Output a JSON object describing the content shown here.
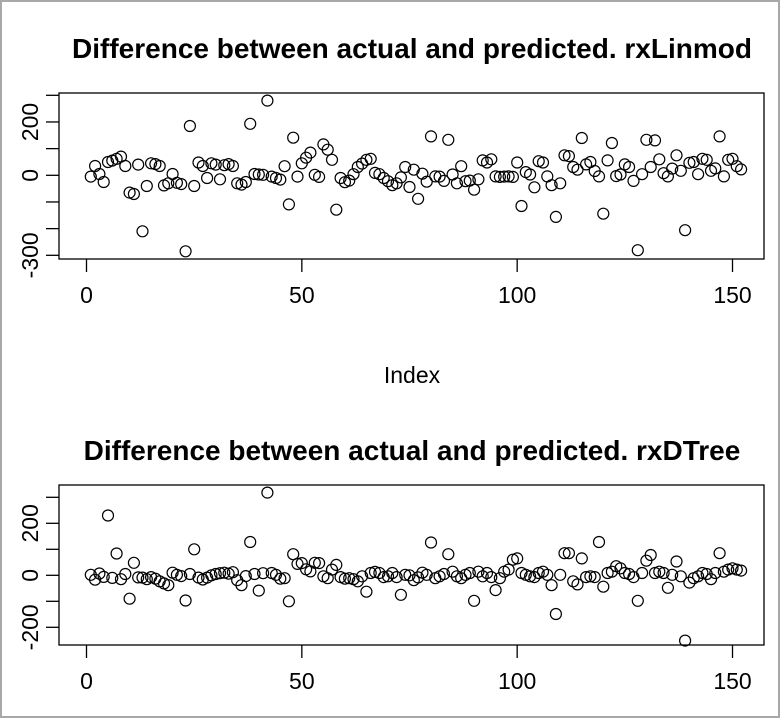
{
  "figure": {
    "background": "#ffffff",
    "border_color": "#a8a8a8"
  },
  "chart_data": [
    {
      "type": "scatter",
      "title": "Difference between actual and predicted. rxLinmod",
      "xlabel": "Index",
      "ylabel": "",
      "marker": "open-circle",
      "point_color": "#000000",
      "grid": false,
      "xlim": [
        -6,
        158
      ],
      "ylim": [
        -313,
        308
      ],
      "x_ticks": [
        {
          "v": 0,
          "label": "0"
        },
        {
          "v": 50,
          "label": "50"
        },
        {
          "v": 100,
          "label": "100"
        },
        {
          "v": 150,
          "label": "150"
        }
      ],
      "y_ticks": [
        {
          "v": 300,
          "label": ""
        },
        {
          "v": 200,
          "label": "200"
        },
        {
          "v": 100,
          "label": ""
        },
        {
          "v": 0,
          "label": "0"
        },
        {
          "v": -100,
          "label": ""
        },
        {
          "v": -200,
          "label": ""
        },
        {
          "v": -300,
          "label": "-300"
        }
      ],
      "points": [
        [
          1,
          -5
        ],
        [
          2,
          35
        ],
        [
          3,
          5
        ],
        [
          4,
          -25
        ],
        [
          5,
          50
        ],
        [
          6,
          55
        ],
        [
          7,
          62
        ],
        [
          8,
          70
        ],
        [
          9,
          35
        ],
        [
          10,
          -65
        ],
        [
          11,
          -70
        ],
        [
          12,
          40
        ],
        [
          13,
          -210
        ],
        [
          14,
          -40
        ],
        [
          15,
          45
        ],
        [
          16,
          42
        ],
        [
          17,
          35
        ],
        [
          18,
          -38
        ],
        [
          19,
          -30
        ],
        [
          20,
          5
        ],
        [
          21,
          -28
        ],
        [
          22,
          -33
        ],
        [
          23,
          -285
        ],
        [
          24,
          185
        ],
        [
          25,
          -40
        ],
        [
          26,
          48
        ],
        [
          27,
          35
        ],
        [
          28,
          -10
        ],
        [
          29,
          45
        ],
        [
          30,
          40
        ],
        [
          31,
          -15
        ],
        [
          32,
          38
        ],
        [
          33,
          42
        ],
        [
          34,
          35
        ],
        [
          35,
          -30
        ],
        [
          36,
          -35
        ],
        [
          37,
          -25
        ],
        [
          38,
          193
        ],
        [
          39,
          5
        ],
        [
          40,
          3
        ],
        [
          41,
          2
        ],
        [
          42,
          280
        ],
        [
          43,
          -5
        ],
        [
          44,
          -10
        ],
        [
          45,
          -16
        ],
        [
          46,
          34
        ],
        [
          47,
          -109
        ],
        [
          48,
          141
        ],
        [
          49,
          -5
        ],
        [
          50,
          45
        ],
        [
          51,
          66
        ],
        [
          52,
          85
        ],
        [
          53,
          2
        ],
        [
          54,
          -6
        ],
        [
          55,
          116
        ],
        [
          56,
          96
        ],
        [
          57,
          58
        ],
        [
          58,
          -129
        ],
        [
          59,
          -10
        ],
        [
          60,
          -26
        ],
        [
          61,
          -20
        ],
        [
          62,
          4
        ],
        [
          63,
          31
        ],
        [
          64,
          44
        ],
        [
          65,
          58
        ],
        [
          66,
          62
        ],
        [
          67,
          9
        ],
        [
          68,
          4
        ],
        [
          69,
          -10
        ],
        [
          70,
          -22
        ],
        [
          71,
          -37
        ],
        [
          72,
          -30
        ],
        [
          73,
          -8
        ],
        [
          74,
          31
        ],
        [
          75,
          -44
        ],
        [
          76,
          21
        ],
        [
          77,
          -88
        ],
        [
          78,
          6
        ],
        [
          79,
          -24
        ],
        [
          80,
          146
        ],
        [
          81,
          -4
        ],
        [
          82,
          -5
        ],
        [
          83,
          -21
        ],
        [
          84,
          133
        ],
        [
          85,
          3
        ],
        [
          86,
          -30
        ],
        [
          87,
          34
        ],
        [
          88,
          -22
        ],
        [
          89,
          -20
        ],
        [
          90,
          -54
        ],
        [
          91,
          -15
        ],
        [
          92,
          56
        ],
        [
          93,
          48
        ],
        [
          94,
          60
        ],
        [
          95,
          -4
        ],
        [
          96,
          -6
        ],
        [
          97,
          -5
        ],
        [
          98,
          -4
        ],
        [
          99,
          -6
        ],
        [
          100,
          48
        ],
        [
          101,
          -115
        ],
        [
          102,
          12
        ],
        [
          103,
          3
        ],
        [
          104,
          -45
        ],
        [
          105,
          53
        ],
        [
          106,
          48
        ],
        [
          107,
          -4
        ],
        [
          108,
          -37
        ],
        [
          109,
          -156
        ],
        [
          110,
          -30
        ],
        [
          111,
          75
        ],
        [
          112,
          72
        ],
        [
          113,
          31
        ],
        [
          114,
          21
        ],
        [
          115,
          140
        ],
        [
          116,
          41
        ],
        [
          117,
          50
        ],
        [
          118,
          16
        ],
        [
          119,
          -4
        ],
        [
          120,
          -144
        ],
        [
          121,
          56
        ],
        [
          122,
          121
        ],
        [
          123,
          -3
        ],
        [
          124,
          3
        ],
        [
          125,
          41
        ],
        [
          126,
          31
        ],
        [
          127,
          -21
        ],
        [
          128,
          -281
        ],
        [
          129,
          4
        ],
        [
          130,
          133
        ],
        [
          131,
          31
        ],
        [
          132,
          131
        ],
        [
          133,
          60
        ],
        [
          134,
          8
        ],
        [
          135,
          -4
        ],
        [
          136,
          25
        ],
        [
          137,
          75
        ],
        [
          138,
          17
        ],
        [
          139,
          -206
        ],
        [
          140,
          47
        ],
        [
          141,
          50
        ],
        [
          142,
          4
        ],
        [
          143,
          62
        ],
        [
          144,
          58
        ],
        [
          145,
          17
        ],
        [
          146,
          26
        ],
        [
          147,
          146
        ],
        [
          148,
          -4
        ],
        [
          149,
          58
        ],
        [
          150,
          62
        ],
        [
          151,
          34
        ],
        [
          152,
          22
        ]
      ]
    },
    {
      "type": "scatter",
      "title": "Difference between actual and predicted. rxDTree",
      "xlabel": "",
      "ylabel": "",
      "marker": "open-circle",
      "point_color": "#000000",
      "grid": false,
      "xlim": [
        -6,
        158
      ],
      "ylim": [
        -268,
        346
      ],
      "x_ticks": [
        {
          "v": 0,
          "label": "0"
        },
        {
          "v": 50,
          "label": "50"
        },
        {
          "v": 100,
          "label": "100"
        },
        {
          "v": 150,
          "label": "150"
        }
      ],
      "y_ticks": [
        {
          "v": 300,
          "label": ""
        },
        {
          "v": 200,
          "label": "200"
        },
        {
          "v": 100,
          "label": ""
        },
        {
          "v": 0,
          "label": "0"
        },
        {
          "v": -100,
          "label": ""
        },
        {
          "v": -200,
          "label": "-200"
        }
      ],
      "points": [
        [
          1,
          2
        ],
        [
          2,
          -17
        ],
        [
          3,
          7
        ],
        [
          4,
          -6
        ],
        [
          5,
          230
        ],
        [
          6,
          -10
        ],
        [
          7,
          84
        ],
        [
          8,
          -15
        ],
        [
          9,
          5
        ],
        [
          10,
          -90
        ],
        [
          11,
          48
        ],
        [
          12,
          -8
        ],
        [
          13,
          -9
        ],
        [
          14,
          -15
        ],
        [
          15,
          -7
        ],
        [
          16,
          -13
        ],
        [
          17,
          -23
        ],
        [
          18,
          -31
        ],
        [
          19,
          -38
        ],
        [
          20,
          10
        ],
        [
          21,
          2
        ],
        [
          22,
          -3
        ],
        [
          23,
          -97
        ],
        [
          24,
          5
        ],
        [
          25,
          100
        ],
        [
          26,
          -9
        ],
        [
          27,
          -16
        ],
        [
          28,
          -9
        ],
        [
          29,
          0
        ],
        [
          30,
          5
        ],
        [
          31,
          8
        ],
        [
          32,
          10
        ],
        [
          33,
          6
        ],
        [
          34,
          12
        ],
        [
          35,
          -19
        ],
        [
          36,
          -38
        ],
        [
          37,
          -3
        ],
        [
          38,
          128
        ],
        [
          39,
          5
        ],
        [
          40,
          -59
        ],
        [
          41,
          8
        ],
        [
          42,
          318
        ],
        [
          43,
          9
        ],
        [
          44,
          2
        ],
        [
          45,
          -13
        ],
        [
          46,
          -11
        ],
        [
          47,
          -100
        ],
        [
          48,
          81
        ],
        [
          49,
          44
        ],
        [
          50,
          47
        ],
        [
          51,
          23
        ],
        [
          52,
          15
        ],
        [
          53,
          48
        ],
        [
          54,
          47
        ],
        [
          55,
          -4
        ],
        [
          56,
          -11
        ],
        [
          57,
          22
        ],
        [
          58,
          40
        ],
        [
          59,
          -7
        ],
        [
          60,
          -13
        ],
        [
          61,
          -11
        ],
        [
          62,
          -15
        ],
        [
          63,
          -23
        ],
        [
          64,
          -4
        ],
        [
          65,
          -63
        ],
        [
          66,
          9
        ],
        [
          67,
          13
        ],
        [
          68,
          9
        ],
        [
          69,
          -7
        ],
        [
          70,
          -4
        ],
        [
          71,
          9
        ],
        [
          72,
          -7
        ],
        [
          73,
          -75
        ],
        [
          74,
          2
        ],
        [
          75,
          0
        ],
        [
          76,
          -19
        ],
        [
          77,
          -8
        ],
        [
          78,
          10
        ],
        [
          79,
          2
        ],
        [
          80,
          126
        ],
        [
          81,
          -11
        ],
        [
          82,
          -4
        ],
        [
          83,
          5
        ],
        [
          84,
          81
        ],
        [
          85,
          14
        ],
        [
          86,
          -4
        ],
        [
          87,
          -11
        ],
        [
          88,
          2
        ],
        [
          89,
          9
        ],
        [
          90,
          -98
        ],
        [
          91,
          14
        ],
        [
          92,
          -4
        ],
        [
          93,
          9
        ],
        [
          94,
          -7
        ],
        [
          95,
          -57
        ],
        [
          96,
          -11
        ],
        [
          97,
          14
        ],
        [
          98,
          22
        ],
        [
          99,
          60
        ],
        [
          100,
          65
        ],
        [
          101,
          9
        ],
        [
          102,
          2
        ],
        [
          103,
          -4
        ],
        [
          104,
          -7
        ],
        [
          105,
          9
        ],
        [
          106,
          14
        ],
        [
          107,
          2
        ],
        [
          108,
          -38
        ],
        [
          109,
          -149
        ],
        [
          110,
          2
        ],
        [
          111,
          85
        ],
        [
          112,
          85
        ],
        [
          113,
          -23
        ],
        [
          114,
          -35
        ],
        [
          115,
          65
        ],
        [
          116,
          -7
        ],
        [
          117,
          -4
        ],
        [
          118,
          -7
        ],
        [
          119,
          128
        ],
        [
          120,
          -44
        ],
        [
          121,
          9
        ],
        [
          122,
          14
        ],
        [
          123,
          35
        ],
        [
          124,
          27
        ],
        [
          125,
          9
        ],
        [
          126,
          5
        ],
        [
          127,
          -7
        ],
        [
          128,
          -98
        ],
        [
          129,
          9
        ],
        [
          130,
          56
        ],
        [
          131,
          78
        ],
        [
          132,
          9
        ],
        [
          133,
          14
        ],
        [
          134,
          9
        ],
        [
          135,
          -48
        ],
        [
          136,
          2
        ],
        [
          137,
          53
        ],
        [
          138,
          -4
        ],
        [
          139,
          -251
        ],
        [
          140,
          -28
        ],
        [
          141,
          -11
        ],
        [
          142,
          -4
        ],
        [
          143,
          9
        ],
        [
          144,
          5
        ],
        [
          145,
          -15
        ],
        [
          146,
          9
        ],
        [
          147,
          85
        ],
        [
          148,
          14
        ],
        [
          149,
          22
        ],
        [
          150,
          27
        ],
        [
          151,
          22
        ],
        [
          152,
          18
        ]
      ]
    }
  ]
}
